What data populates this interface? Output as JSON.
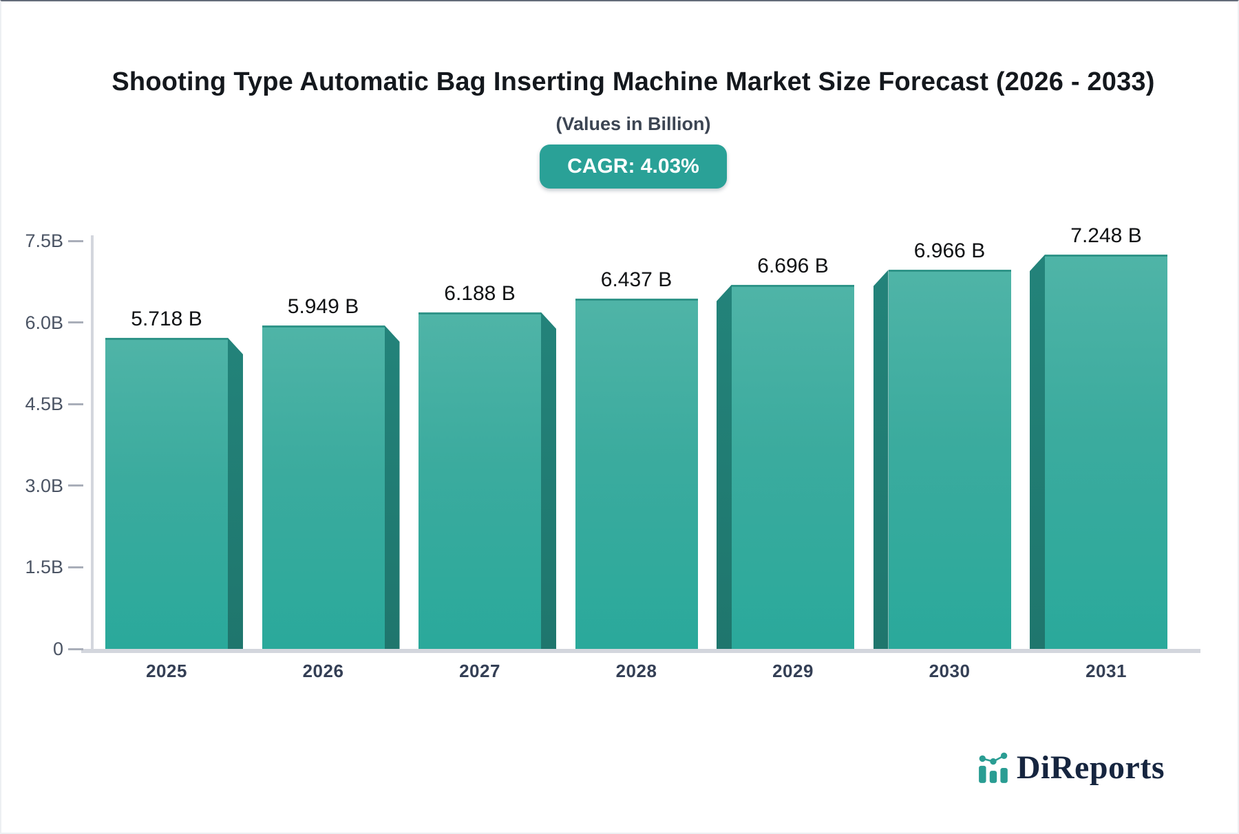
{
  "header": {
    "title": "Shooting Type Automatic Bag Inserting Machine Market Size Forecast (2026 - 2033)",
    "subtitle": "(Values in Billion)",
    "cagr_label": "CAGR: 4.03%"
  },
  "chart_data": {
    "type": "bar",
    "categories": [
      "2025",
      "2026",
      "2027",
      "2028",
      "2029",
      "2030",
      "2031"
    ],
    "values": [
      5.718,
      5.949,
      6.188,
      6.437,
      6.696,
      6.966,
      7.248
    ],
    "value_labels": [
      "5.718 B",
      "5.949 B",
      "6.188 B",
      "6.437 B",
      "6.696 B",
      "6.966 B",
      "7.248 B"
    ],
    "title": "Shooting Type Automatic Bag Inserting Machine Market Size Forecast (2026 - 2033)",
    "xlabel": "",
    "ylabel": "",
    "ylim": [
      0,
      7.5
    ],
    "yticks": [
      {
        "label": "7.5B",
        "value": 7.5
      },
      {
        "label": "6.0B",
        "value": 6.0
      },
      {
        "label": "4.5B",
        "value": 4.5
      },
      {
        "label": "3.0B",
        "value": 3.0
      },
      {
        "label": "1.5B",
        "value": 1.5
      },
      {
        "label": "0",
        "value": 0
      }
    ],
    "grid": false,
    "legend": false,
    "bar_style": "3d-bevel-teal"
  },
  "branding": {
    "logo_text": "DiReports",
    "logo_icon": "bar-chart-trend-icon"
  },
  "colors": {
    "accent": "#2aa197",
    "bar_top": "#4fb4a7",
    "bar_bottom": "#2aa99b",
    "bar_side": "#1f766d",
    "axis_line": "#d3d6dd",
    "tick_text": "#4b5464",
    "navy": "#16253f",
    "logo_teal": "#2a9d93"
  }
}
